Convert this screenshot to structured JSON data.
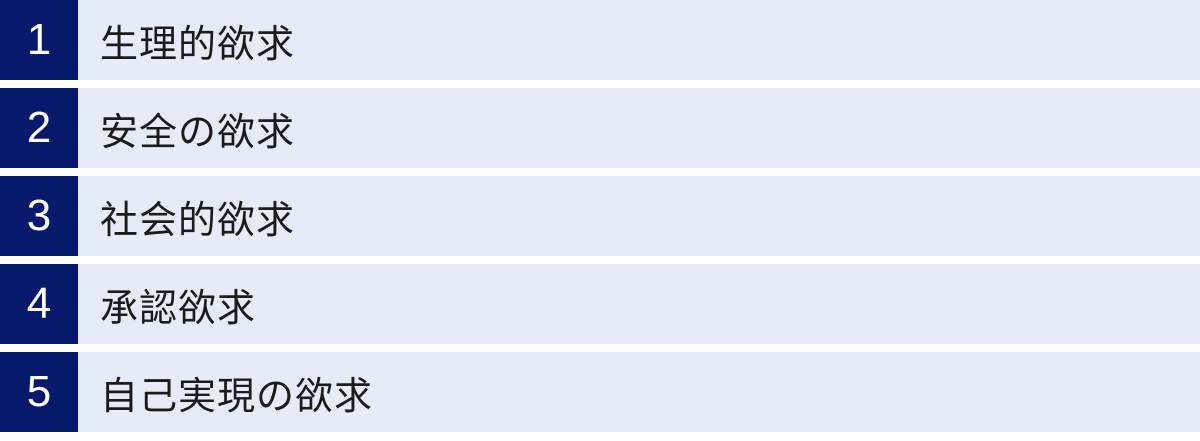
{
  "list": {
    "items": [
      {
        "number": "1",
        "label": "生理的欲求"
      },
      {
        "number": "2",
        "label": "安全の欲求"
      },
      {
        "number": "3",
        "label": "社会的欲求"
      },
      {
        "number": "4",
        "label": "承認欲求"
      },
      {
        "number": "5",
        "label": "自己実現の欲求"
      }
    ]
  },
  "colors": {
    "number_box_bg": "#07196a",
    "row_bg": "#e6ebf8",
    "number_text": "#ffffff",
    "label_text": "#1b1b1b",
    "page_bg": "#ffffff"
  }
}
